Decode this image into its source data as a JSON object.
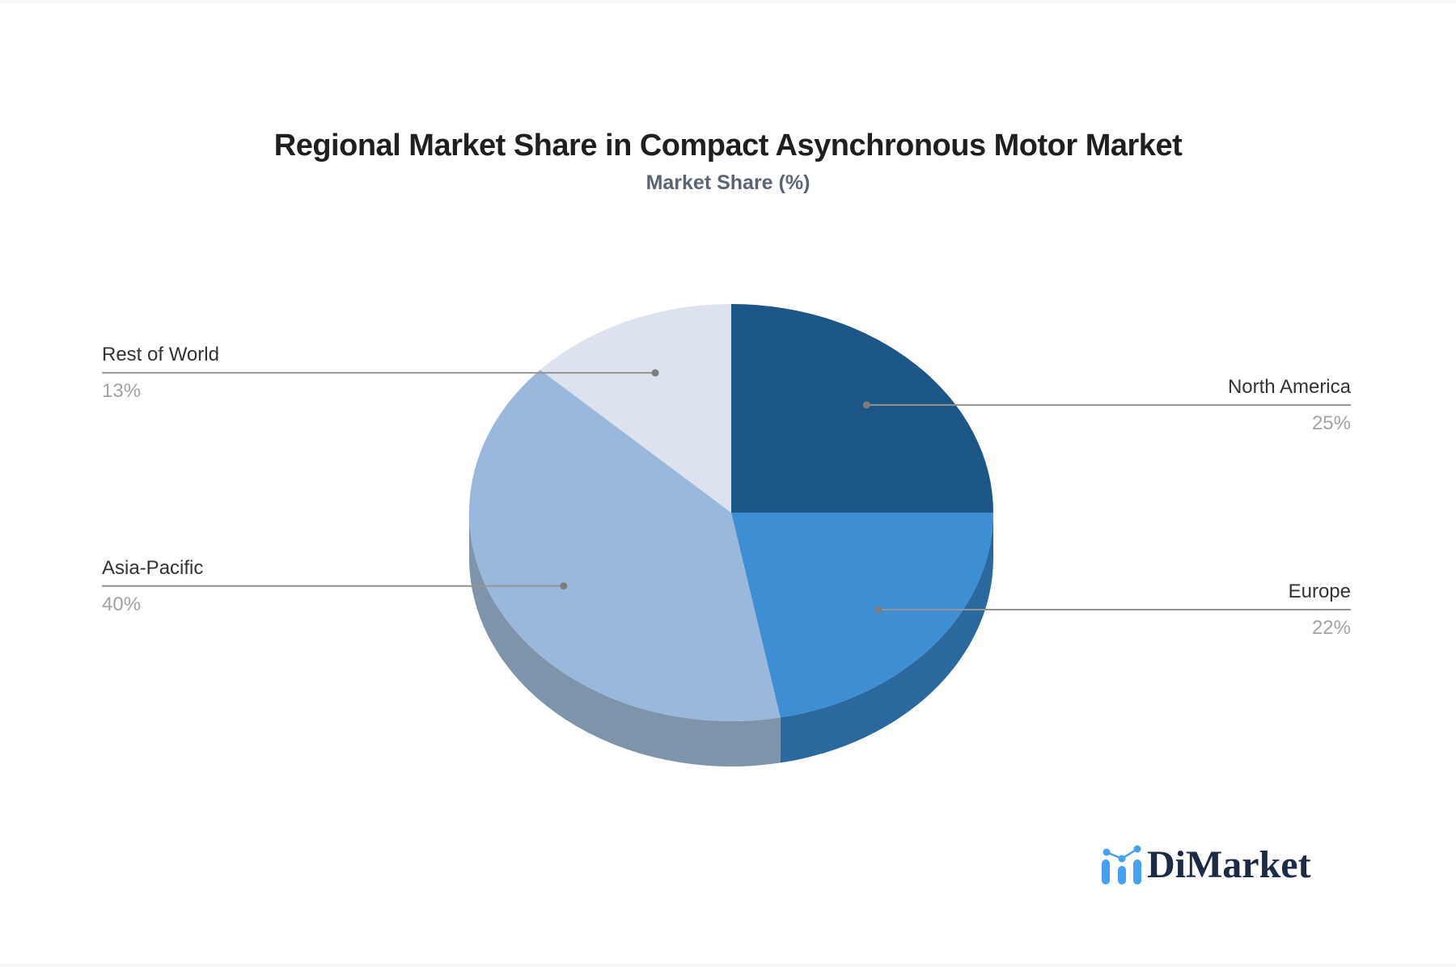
{
  "title": "Regional Market Share in Compact Asynchronous Motor Market",
  "subtitle": "Market Share (%)",
  "chart_data": {
    "type": "pie",
    "style": "3d",
    "labels": [
      "North America",
      "Europe",
      "Asia-Pacific",
      "Rest of World"
    ],
    "values": [
      25,
      22,
      40,
      13
    ],
    "unit": "%",
    "colors": [
      "#1b5687",
      "#3e8ed3",
      "#9ab8dc",
      "#dde3ee"
    ],
    "side_colors": [
      "#164a75",
      "#2b689d",
      "#7e94ab",
      "#c3cdda"
    ],
    "start_angle_deg": 0,
    "direction": "clockwise",
    "legend": "none",
    "leader_line_color": "#949494",
    "leader_dot_color": "#7d7d7d",
    "label_name_color": "#333333",
    "label_value_color": "#a3a3a3"
  },
  "brand": {
    "name": "DiMarket",
    "icon": "bar-chart-logo-icon",
    "icon_color": "#47a1f3",
    "text_color": "#1c2b45"
  }
}
